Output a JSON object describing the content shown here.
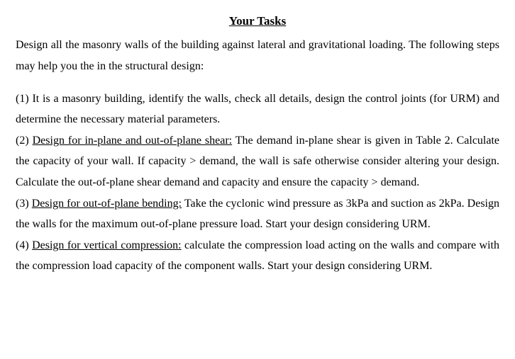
{
  "title": "Your Tasks",
  "intro": "Design all the masonry walls of the building against lateral and gravitational loading. The following steps may help you the in the structural design:",
  "steps": [
    {
      "prefix": "(1) ",
      "underlined": "",
      "rest": "It is a masonry building, identify the walls, check all details, design the control joints (for URM) and determine the necessary material parameters."
    },
    {
      "prefix": "(2) ",
      "underlined": "Design for in-plane and out-of-plane shear:",
      "rest": " The demand in-plane shear is given in Table 2. Calculate the capacity of your wall. If capacity > demand, the wall is safe otherwise consider altering your design. Calculate the out-of-plane shear demand and capacity and ensure the capacity > demand."
    },
    {
      "prefix": "(3) ",
      "underlined": "Design for out-of-plane bending:",
      "rest": " Take the cyclonic wind pressure as 3kPa and suction as 2kPa. Design the walls for the maximum out-of-plane pressure load. Start your design considering URM."
    },
    {
      "prefix": "(4) ",
      "underlined": "Design for vertical compression:",
      "rest": " calculate the compression load acting on the walls and compare with the compression load capacity of the component walls. Start your design considering URM."
    }
  ],
  "colors": {
    "background": "#ffffff",
    "text": "#000000"
  },
  "typography": {
    "font_family": "Times New Roman",
    "font_size_body": 16,
    "font_size_title": 17,
    "line_height": 1.85
  }
}
